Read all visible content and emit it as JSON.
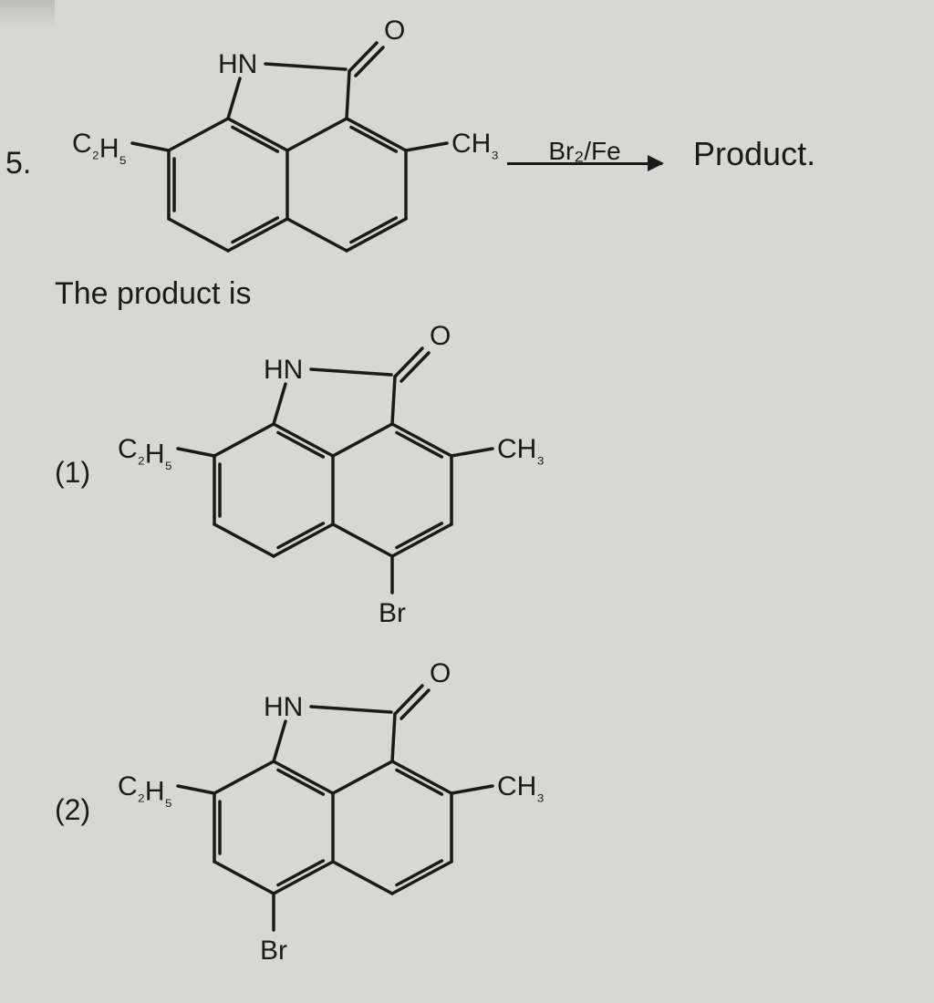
{
  "question_number": "5.",
  "reagent_label": "Br₂/Fe",
  "product_word": "Product.",
  "prompt_text": "The product is",
  "options": {
    "1": "(1)",
    "2": "(2)"
  },
  "starting_material": {
    "left_sub_html": "C₂H₅",
    "right_sub": "CH₃",
    "nh_label": "HN",
    "o_label": "O",
    "br_label": null,
    "br_side": null
  },
  "option1_mol": {
    "left_sub_html": "C₂H₅",
    "right_sub": "CH₃",
    "nh_label": "HN",
    "o_label": "O",
    "br_label": "Br",
    "br_side": "right"
  },
  "option2_mol": {
    "left_sub_html": "C₂H₅",
    "right_sub": "CH₃",
    "nh_label": "HN",
    "o_label": "O",
    "br_label": "Br",
    "br_side": "left"
  },
  "style": {
    "bond_stroke": "#1a1a1a",
    "bond_width": 3.5,
    "double_gap": 6,
    "label_fontsize": 30,
    "small_label_fontsize": 30,
    "background": "#d7d7d3"
  }
}
